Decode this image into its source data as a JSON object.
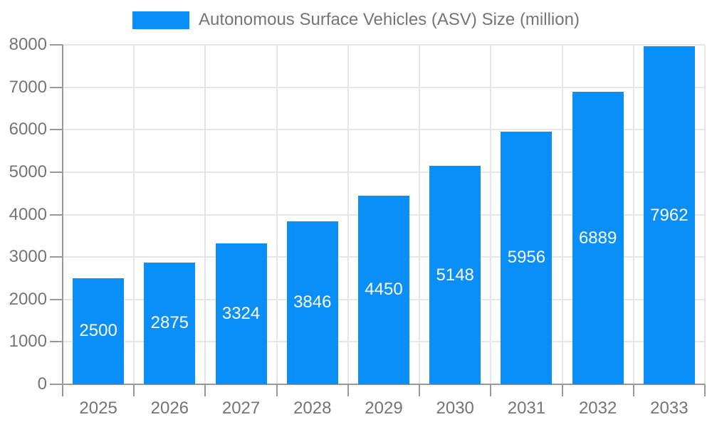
{
  "legend": {
    "label": "Autonomous Surface Vehicles (ASV) Size (million)"
  },
  "chart_data": {
    "type": "bar",
    "title": "",
    "xlabel": "",
    "ylabel": "",
    "categories": [
      "2025",
      "2026",
      "2027",
      "2028",
      "2029",
      "2030",
      "2031",
      "2032",
      "2033"
    ],
    "values": [
      2500,
      2875,
      3324,
      3846,
      4450,
      5148,
      5956,
      6889,
      7962
    ],
    "series_name": "Autonomous Surface Vehicles (ASV) Size (million)",
    "ylim": [
      0,
      8000
    ],
    "yticks": [
      0,
      1000,
      2000,
      3000,
      4000,
      5000,
      6000,
      7000,
      8000
    ],
    "grid": true,
    "legend_position": "top",
    "value_labels": "inside-center",
    "colors": {
      "bar": "#0a8ff8",
      "value_label": "#ffffff",
      "axis": "#999999",
      "grid": "#e6e6e6",
      "tick_text": "#757575",
      "legend_text": "#757575",
      "background": "#ffffff"
    }
  }
}
